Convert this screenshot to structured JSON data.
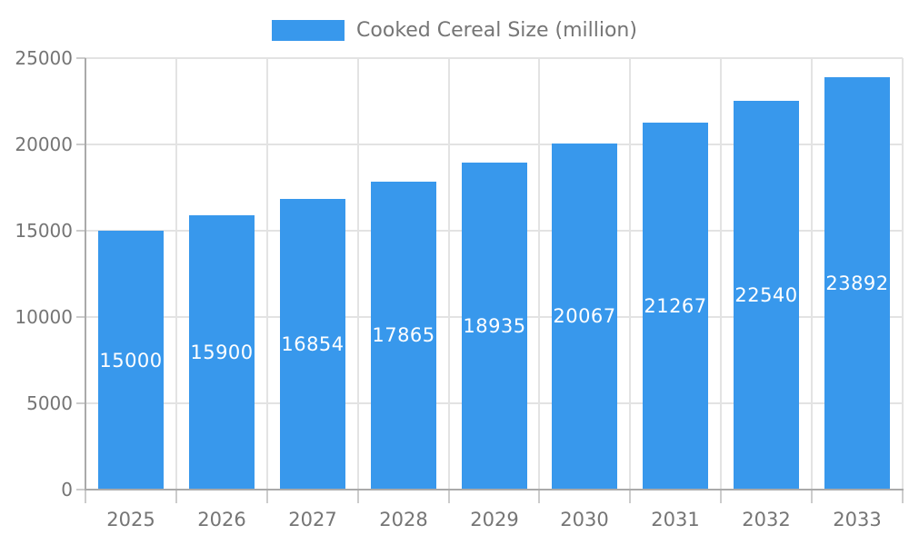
{
  "legend": {
    "label": "Cooked Cereal Size (million)"
  },
  "colors": {
    "bar": "#3898EC",
    "axis_line": "#aaaaaa",
    "gridline": "#e3e3e3",
    "tick": "#cccccc",
    "label_text": "#757575",
    "bar_label_text": "#ffffff"
  },
  "chart_data": {
    "type": "bar",
    "title": "Cooked Cereal Size (million)",
    "series_name": "Cooked Cereal Size (million)",
    "categories": [
      "2025",
      "2026",
      "2027",
      "2028",
      "2029",
      "2030",
      "2031",
      "2032",
      "2033"
    ],
    "values": [
      15000,
      15900,
      16854,
      17865,
      18935,
      20067,
      21267,
      22540,
      23892
    ],
    "bar_labels": [
      15000,
      15900,
      16854,
      17865,
      18935,
      20067,
      21267,
      22540,
      23892
    ],
    "xlabel": "",
    "ylabel": "",
    "ylim": [
      0,
      25000
    ],
    "yticks": [
      0,
      5000,
      10000,
      15000,
      20000,
      25000
    ],
    "grid": "horizontal and vertical light gray gridlines",
    "legend_position": "top center",
    "value_labels_position": "inside bars, vertically centered, white"
  }
}
